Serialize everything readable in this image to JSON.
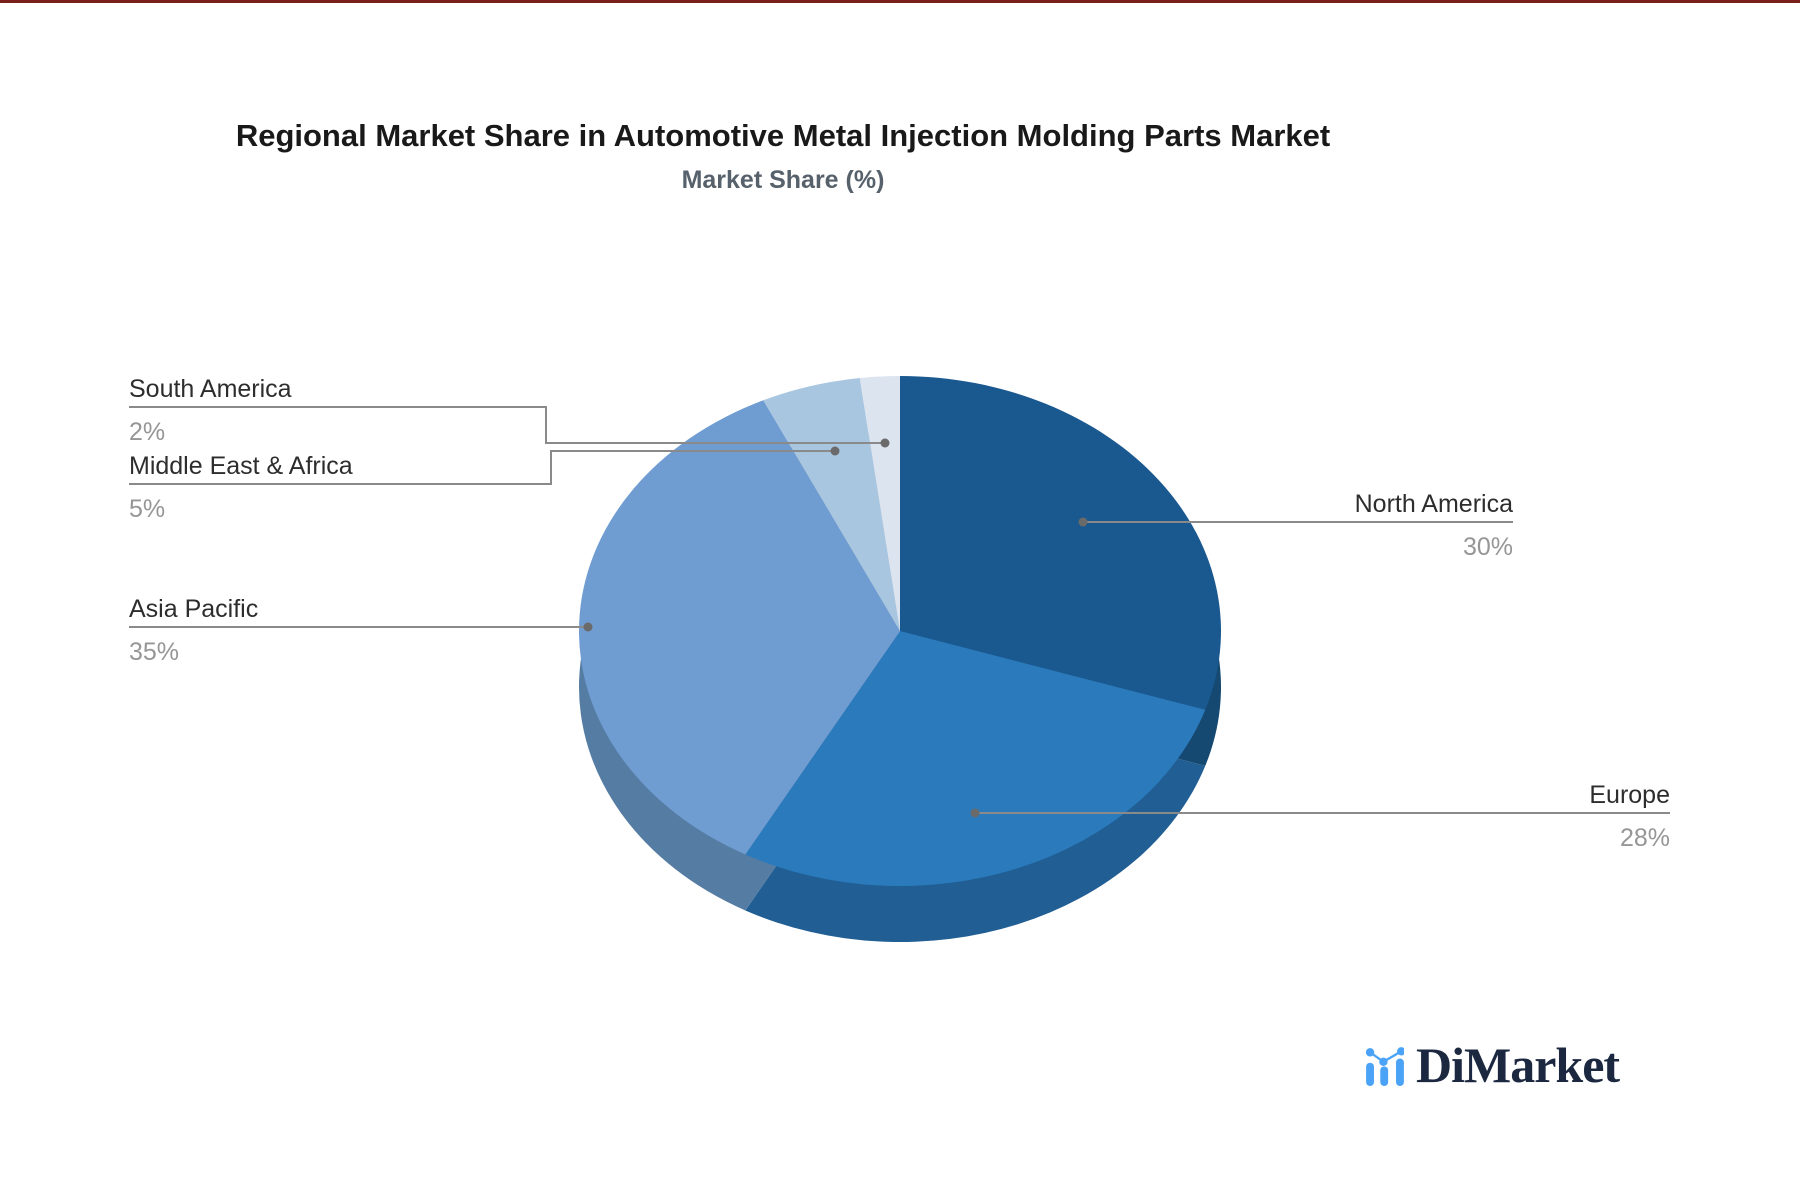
{
  "title": "Regional Market Share in Automotive Metal Injection Molding Parts Market",
  "subtitle": "Market Share (%)",
  "logo": {
    "text": "DiMarket",
    "icon": "bar-chart-logo-icon",
    "icon_color": "#4BA3F7",
    "text_color": "#1B2840"
  },
  "chart_data": {
    "type": "pie",
    "title": "Regional Market Share in Automotive Metal Injection Molding Parts Market",
    "subtitle": "Market Share (%)",
    "unit": "%",
    "is_3d": true,
    "start_angle": "12-oclock",
    "direction": "clockwise",
    "legend_position": "callout-labels",
    "slices": [
      {
        "label": "North America",
        "value": 30,
        "display": "30%",
        "color": "#1A5890",
        "side_color": "#154971"
      },
      {
        "label": "Europe",
        "value": 28,
        "display": "28%",
        "color": "#2B7ABC",
        "side_color": "#205E94"
      },
      {
        "label": "Asia Pacific",
        "value": 35,
        "display": "35%",
        "color": "#6F9CD1",
        "side_color": "#557CA3"
      },
      {
        "label": "Middle East & Africa",
        "value": 5,
        "display": "5%",
        "color": "#A9C6E1",
        "side_color": "#84A0BC"
      },
      {
        "label": "South America",
        "value": 2,
        "display": "2%",
        "color": "#DCE4EF",
        "side_color": "#ACB8C9"
      }
    ],
    "label_name_color": "#2D2D2D",
    "label_value_color": "#969696",
    "leader_line_color": "#8A8A8A",
    "leader_dot_color": "#6A6A6A"
  }
}
